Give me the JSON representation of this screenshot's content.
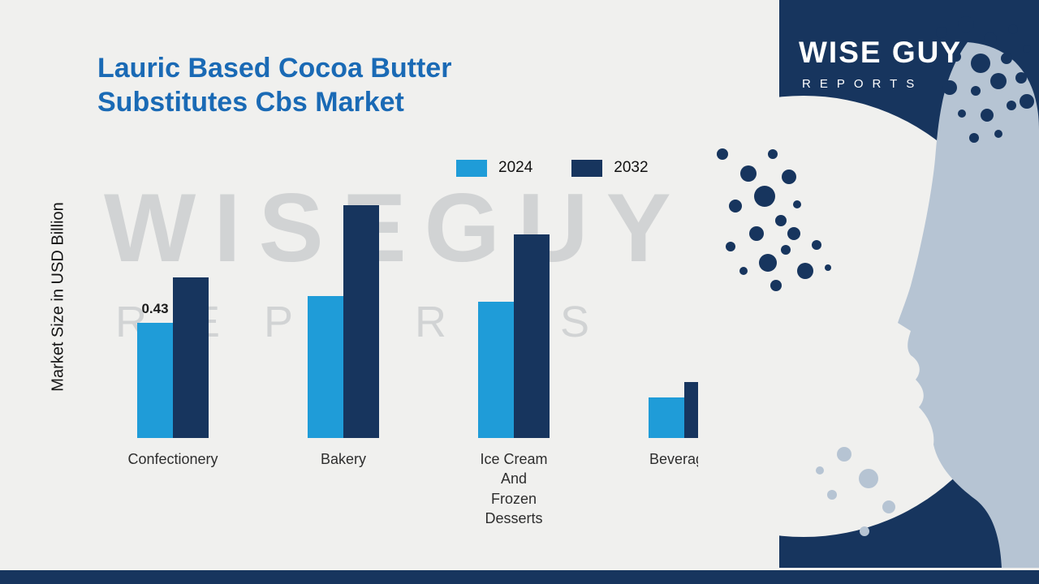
{
  "page": {
    "title": "Lauric Based Cocoa Butter Substitutes Cbs Market",
    "y_axis_label": "Market Size in USD Billion"
  },
  "watermark": {
    "line1": "WISEGUY",
    "line2": "REPORTS"
  },
  "logo": {
    "line1": "WISE GUY",
    "line2": "REPORTS"
  },
  "colors": {
    "accent_blue": "#1f9cd8",
    "navy": "#17355e",
    "title_blue": "#1a6ab5",
    "background": "#f0f0ee",
    "face_silhouette": "#b6c4d3"
  },
  "chart_data": {
    "type": "bar",
    "title": "Lauric Based Cocoa Butter Substitutes Cbs Market",
    "xlabel": "",
    "ylabel": "Market Size in USD Billion",
    "categories": [
      "Confectionery",
      "Bakery",
      "Ice Cream And Frozen Desserts",
      "Beverages"
    ],
    "series": [
      {
        "name": "2024",
        "color": "#1f9cd8",
        "values": [
          0.43,
          0.53,
          0.51,
          0.15
        ]
      },
      {
        "name": "2032",
        "color": "#17355e",
        "values": [
          0.6,
          0.87,
          0.76,
          0.21
        ]
      }
    ],
    "annotations": [
      {
        "series": 0,
        "category": 0,
        "text": "0.43"
      }
    ],
    "ylim": [
      0,
      1
    ],
    "grid": false,
    "legend_position": "top-center"
  }
}
